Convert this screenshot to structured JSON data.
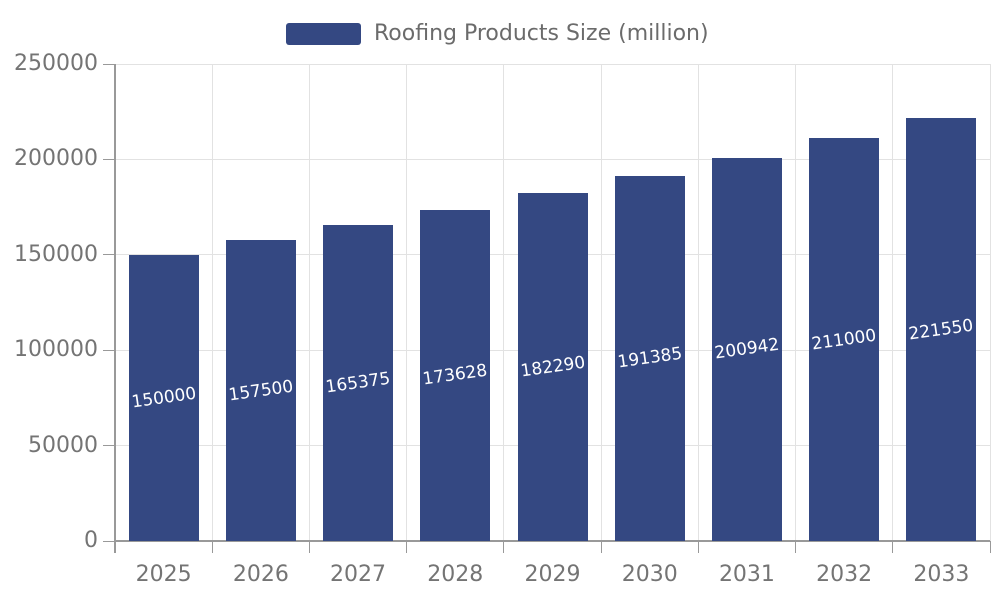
{
  "legend": {
    "label": "Roofing Products Size (million)"
  },
  "colors": {
    "bar": "#344882",
    "grid": "#e2e2e2",
    "axis": "#999999",
    "axis_text": "#747474",
    "legend_text": "#6b6b6b",
    "value_label": "#ffffff"
  },
  "chart_data": {
    "type": "bar",
    "title": "Roofing Products Size (million)",
    "legend_position": "top-center",
    "grid": true,
    "categories": [
      "2025",
      "2026",
      "2027",
      "2028",
      "2029",
      "2030",
      "2031",
      "2032",
      "2033"
    ],
    "values": [
      150000,
      157500,
      165375,
      173628,
      182290,
      191385,
      200942,
      211000,
      221550
    ],
    "xlabel": "",
    "ylabel": "",
    "ylim": [
      0,
      250000
    ],
    "yticks": [
      0,
      50000,
      100000,
      150000,
      200000,
      250000
    ]
  }
}
